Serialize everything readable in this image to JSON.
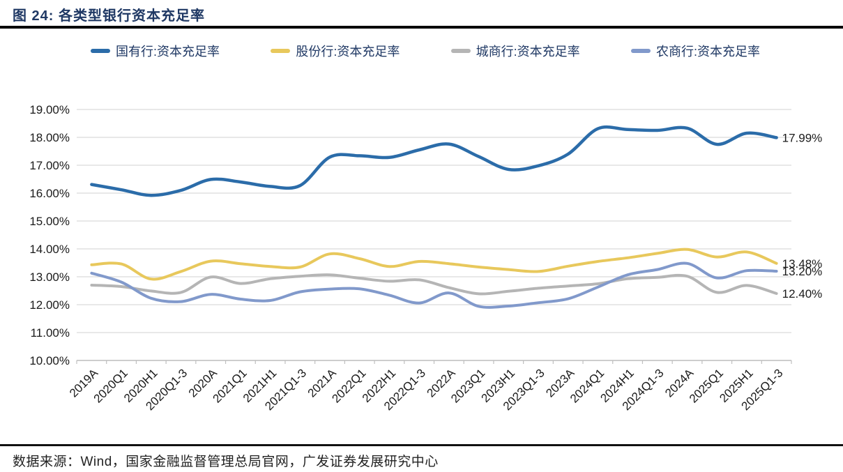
{
  "page": {
    "figure_title": "图 24:  各类型银行资本充足率",
    "source_note": "数据来源：Wind，国家金融监督管理总局官网，广发证券发展研究中心"
  },
  "colors": {
    "title_text": "#1F3864",
    "legend_text": "#1F3864",
    "rule": "#000000",
    "gridline": "#D9D9D9",
    "axis_line": "#BFBFBF",
    "tick_text": "#1A1A1A"
  },
  "chart_data": {
    "type": "line",
    "title": "图 24: 各类型银行资本充足率",
    "grid": "horizontal",
    "legend_position": "top",
    "smooth": true,
    "ylim": [
      10,
      19
    ],
    "ytick_step": 1,
    "ytick_format": "percent-2dp",
    "categories": [
      "2019A",
      "2020Q1",
      "2020H1",
      "2020Q1-3",
      "2020A",
      "2021Q1",
      "2021H1",
      "2021Q1-3",
      "2021A",
      "2022Q1",
      "2022H1",
      "2022Q1-3",
      "2022A",
      "2023Q1",
      "2023H1",
      "2023Q1-3",
      "2023A",
      "2024Q1",
      "2024H1",
      "2024Q1-3",
      "2024A",
      "2025Q1",
      "2025H1",
      "2025Q1-3"
    ],
    "series": [
      {
        "name": "国有行:资本充足率",
        "color": "#2B6CA9",
        "stroke_width": 4.5,
        "end_label": "17.99%",
        "values": [
          16.31,
          16.12,
          15.92,
          16.1,
          16.49,
          16.4,
          16.24,
          16.27,
          17.29,
          17.34,
          17.28,
          17.55,
          17.76,
          17.31,
          16.85,
          16.98,
          17.4,
          18.31,
          18.28,
          18.25,
          18.33,
          17.75,
          18.15,
          17.99
        ]
      },
      {
        "name": "股份行:资本充足率",
        "color": "#E8C85C",
        "stroke_width": 4,
        "end_label": "13.48%",
        "values": [
          13.43,
          13.46,
          12.92,
          13.19,
          13.56,
          13.47,
          13.37,
          13.35,
          13.82,
          13.65,
          13.37,
          13.55,
          13.47,
          13.35,
          13.26,
          13.19,
          13.38,
          13.55,
          13.68,
          13.84,
          13.98,
          13.71,
          13.89,
          13.48
        ]
      },
      {
        "name": "城商行:资本充足率",
        "color": "#B5B5B5",
        "stroke_width": 4,
        "end_label": "12.40%",
        "values": [
          12.7,
          12.65,
          12.49,
          12.44,
          12.99,
          12.76,
          12.93,
          13.02,
          13.07,
          12.95,
          12.84,
          12.89,
          12.61,
          12.39,
          12.48,
          12.59,
          12.67,
          12.75,
          12.93,
          12.98,
          13.02,
          12.44,
          12.69,
          12.4
        ]
      },
      {
        "name": "农商行:资本充足率",
        "color": "#8199CB",
        "stroke_width": 4,
        "end_label": "13.20%",
        "values": [
          13.13,
          12.81,
          12.23,
          12.11,
          12.37,
          12.2,
          12.15,
          12.46,
          12.56,
          12.57,
          12.34,
          12.06,
          12.42,
          11.94,
          11.95,
          12.07,
          12.21,
          12.63,
          13.07,
          13.26,
          13.48,
          12.96,
          13.22,
          13.2
        ]
      }
    ]
  }
}
